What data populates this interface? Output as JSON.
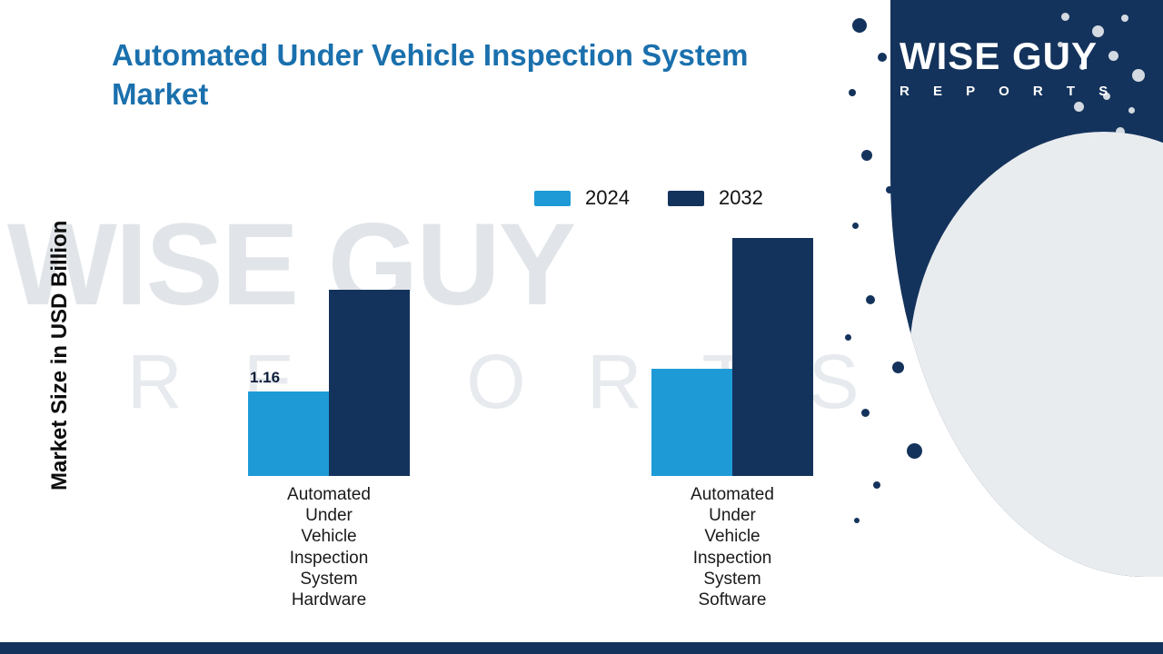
{
  "title": "Automated Under Vehicle Inspection System Market",
  "logo": {
    "line1": "WISE GUY",
    "line2": "R E P O R T S"
  },
  "watermark": {
    "line1": "WISE GUY",
    "line2": "R E P O R T S"
  },
  "colors": {
    "title_blue": "#1a70ad",
    "bar_light_blue": "#1e9bd7",
    "bar_navy": "#14335c",
    "panel_navy": "#14335c",
    "watermark_gray": "#e1e5e9",
    "footer_navy": "#14335c"
  },
  "chart_data": {
    "type": "bar",
    "title": "Automated Under Vehicle Inspection System Market",
    "ylabel": "Market Size in USD Billion",
    "categories": [
      "Automated Under Vehicle Inspection System Hardware",
      "Automated Under Vehicle Inspection System Software"
    ],
    "series": [
      {
        "name": "2024",
        "color": "#1e9bd7",
        "values": [
          1.16,
          1.47
        ],
        "labels": [
          "1.16",
          ""
        ]
      },
      {
        "name": "2032",
        "color": "#14335c",
        "values": [
          2.56,
          3.28
        ],
        "labels": [
          "",
          ""
        ]
      }
    ],
    "ylim": [
      0,
      3.5
    ],
    "grid": false,
    "legend_position": "top-center",
    "shown_data_labels": [
      "1.16"
    ]
  }
}
